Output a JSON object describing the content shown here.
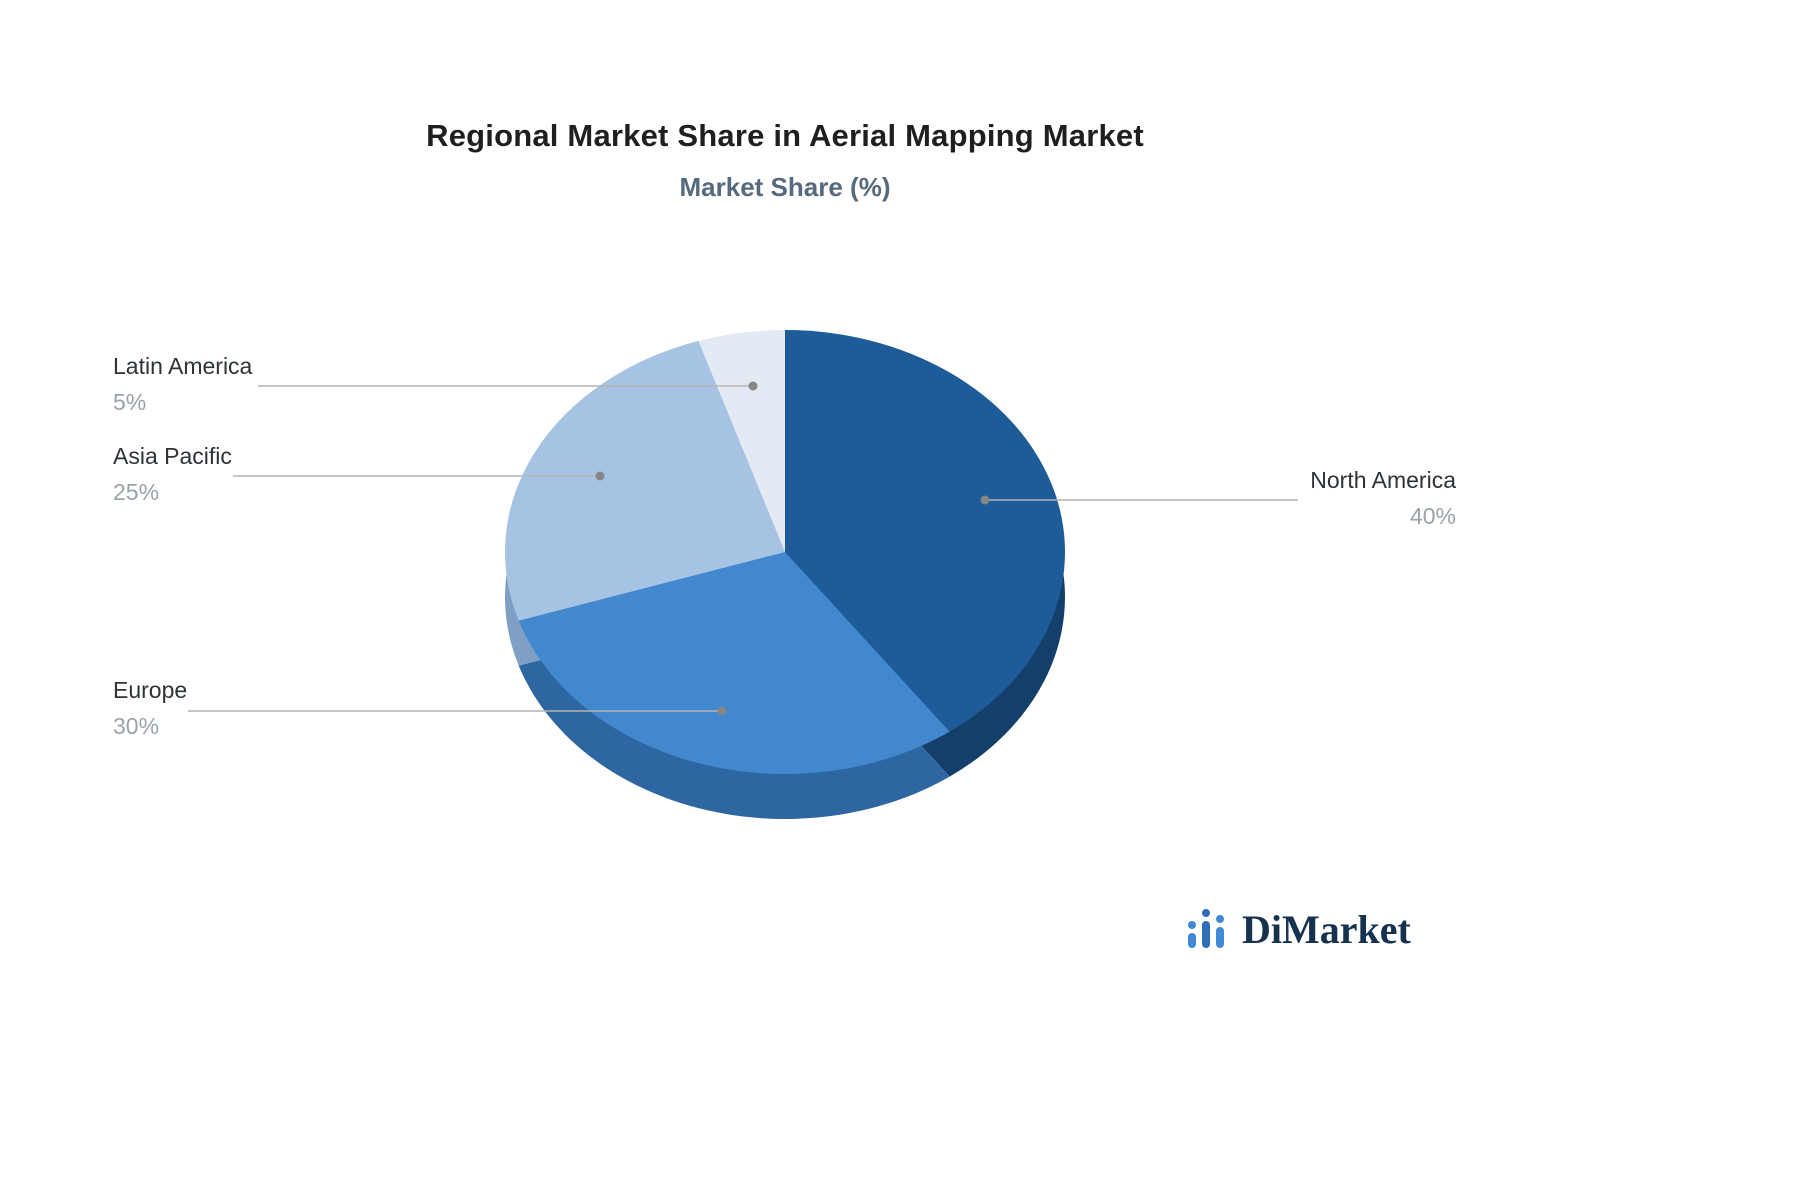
{
  "header": {
    "title": "Regional Market Share in Aerial Mapping Market",
    "subtitle": "Market Share (%)"
  },
  "chart_data": {
    "type": "pie",
    "style": "3d",
    "title": "Regional Market Share in Aerial Mapping Market",
    "subtitle": "Market Share (%)",
    "unit": "%",
    "start_angle_deg": 0,
    "direction": "clockwise",
    "legend_position": "callout-lines",
    "slices": [
      {
        "label": "North America",
        "value": 40,
        "display": "40%",
        "color": "#1e5b99",
        "depth_color": "#143f6b"
      },
      {
        "label": "Europe",
        "value": 30,
        "display": "30%",
        "color": "#4288ce",
        "depth_color": "#2e66a1"
      },
      {
        "label": "Asia Pacific",
        "value": 25,
        "display": "25%",
        "color": "#a6c3e3",
        "depth_color": "#7fa0c4"
      },
      {
        "label": "Latin America",
        "value": 5,
        "display": "5%",
        "color": "#e3eaf3",
        "depth_color": "#bccadb"
      }
    ]
  },
  "brand": {
    "name": "DiMarket",
    "icon": "bar-chart-icon",
    "accent_color": "#4189d4",
    "text_color": "#15334f"
  }
}
